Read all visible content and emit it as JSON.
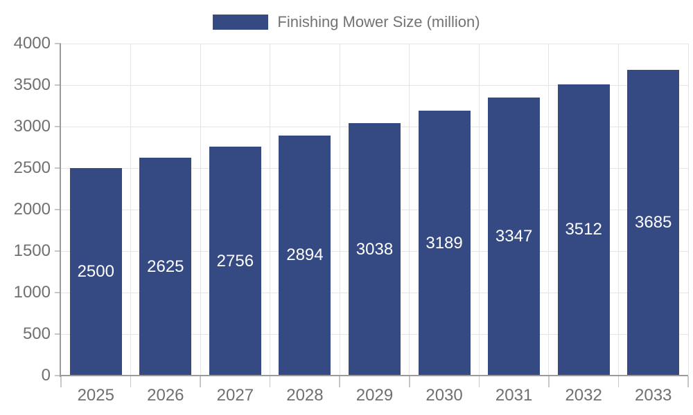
{
  "chart_data": {
    "type": "bar",
    "title": "",
    "legend": {
      "position": "top",
      "entries": [
        "Finishing Mower Size (million)"
      ]
    },
    "categories": [
      "2025",
      "2026",
      "2027",
      "2028",
      "2029",
      "2030",
      "2031",
      "2032",
      "2033"
    ],
    "series": [
      {
        "name": "Finishing Mower Size (million)",
        "values": [
          2500,
          2625,
          2756,
          2894,
          3038,
          3189,
          3347,
          3512,
          3685
        ],
        "color": "#354a83"
      }
    ],
    "bar_value_labels": [
      "2500",
      "2625",
      "2756",
      "2894",
      "3038",
      "3189",
      "3347",
      "3512",
      "3685"
    ],
    "xlabel": "",
    "ylabel": "",
    "ylim": [
      0,
      4000
    ],
    "yticks": [
      0,
      500,
      1000,
      1500,
      2000,
      2500,
      3000,
      3500,
      4000
    ],
    "grid": true
  },
  "colors": {
    "bar": "#354a83",
    "grid": "#e4e4e4",
    "axis": "#9a9a9a",
    "tick": "#c6c6c6",
    "text": "#707070",
    "value_label": "#ffffff",
    "background": "#ffffff"
  }
}
